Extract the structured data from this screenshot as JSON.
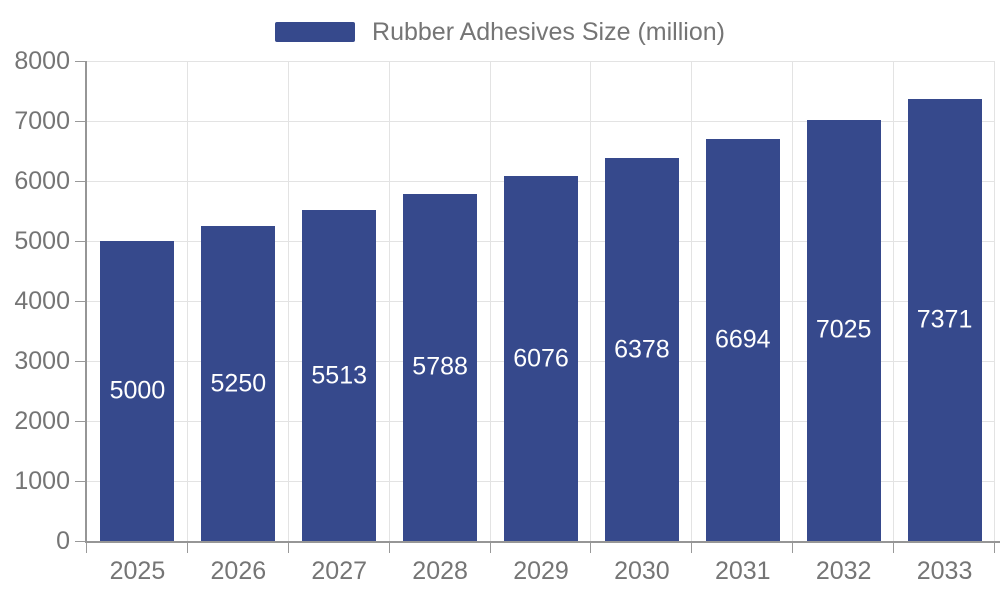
{
  "chart_data": {
    "type": "bar",
    "title": "Rubber Adhesives Size (million)",
    "legend": [
      "Rubber Adhesives Size (million)"
    ],
    "legend_position": "top-center",
    "categories": [
      "2025",
      "2026",
      "2027",
      "2028",
      "2029",
      "2030",
      "2031",
      "2032",
      "2033"
    ],
    "values": [
      5000,
      5250,
      5513,
      5788,
      6076,
      6378,
      6694,
      7025,
      7371
    ],
    "xlabel": "",
    "ylabel": "",
    "ylim": [
      0,
      8000
    ],
    "ytick_step": 1000,
    "ytick_labels": [
      "0",
      "1000",
      "2000",
      "3000",
      "4000",
      "5000",
      "6000",
      "7000",
      "8000"
    ],
    "grid": true,
    "bar_value_labels_shown": true,
    "colors": {
      "bar": "#36498c",
      "bar_label": "#ffffff",
      "axis_text": "#757575",
      "grid_line": "#e3e3e3",
      "axis_line": "#969696",
      "tick": "#999999",
      "background": "#ffffff"
    }
  }
}
